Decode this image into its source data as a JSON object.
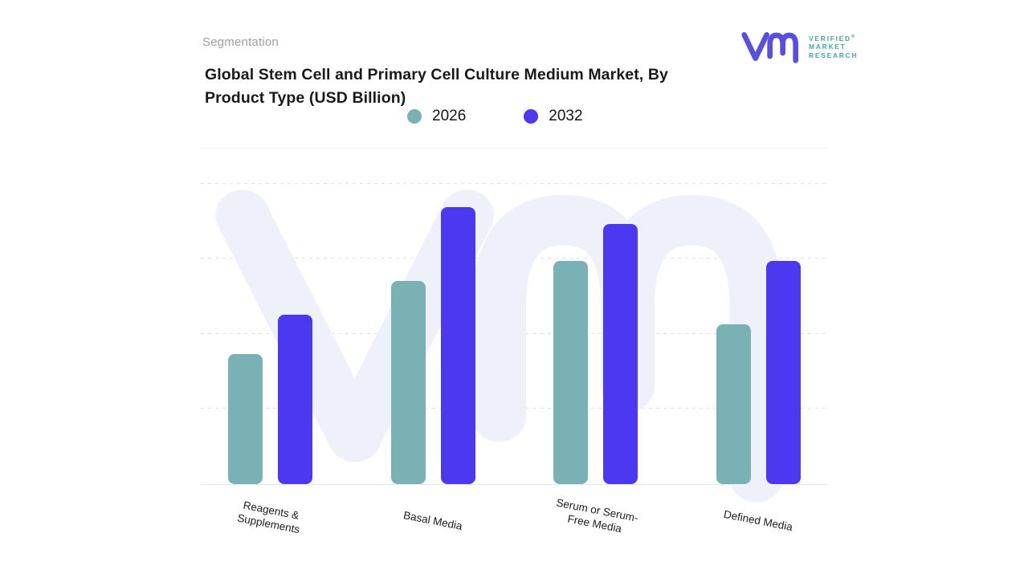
{
  "header": {
    "eyebrow": "Segmentation",
    "title_line1": "Global Stem Cell and Primary Cell Culture Medium Market, By",
    "title_line2": "Product Type (USD Billion)"
  },
  "logo": {
    "brand_line1": "VERIFIED",
    "brand_line2": "MARKET",
    "brand_line3": "RESEARCH",
    "registered_mark": "®",
    "monogram_color": "#574ee2",
    "text_color": "#42a8a6"
  },
  "legend": {
    "items": [
      {
        "label": "2026",
        "color": "#7ab1b5"
      },
      {
        "label": "2032",
        "color": "#4b38f0"
      }
    ]
  },
  "chart_data": {
    "type": "bar",
    "title": "Global Stem Cell and Primary Cell Culture Medium Market, By Product Type (USD Billion)",
    "value_unit": "USD Billion",
    "categories": [
      "Reagents & Supplements",
      "Basal Media",
      "Serum or Serum-Free Media",
      "Defined Media"
    ],
    "category_label_lines": [
      [
        "Reagents &",
        "Supplements"
      ],
      [
        "Basal Media"
      ],
      [
        "Serum or Serum-",
        "Free Media"
      ],
      [
        "Defined Media"
      ]
    ],
    "series": [
      {
        "name": "2026",
        "color": "#7ab1b5",
        "values": [
          1.73,
          2.7,
          2.97,
          2.12
        ]
      },
      {
        "name": "2032",
        "color": "#4b38f0",
        "values": [
          2.25,
          3.68,
          3.46,
          2.97
        ]
      }
    ],
    "value_axis": {
      "tick_labels_visible": false,
      "gridline_count": 4,
      "ylim": [
        0,
        4.3
      ]
    },
    "legend_position": "top",
    "grid": "horizontal-dashed",
    "watermark_color": "#eef0fa",
    "xlabel": "",
    "ylabel": ""
  }
}
